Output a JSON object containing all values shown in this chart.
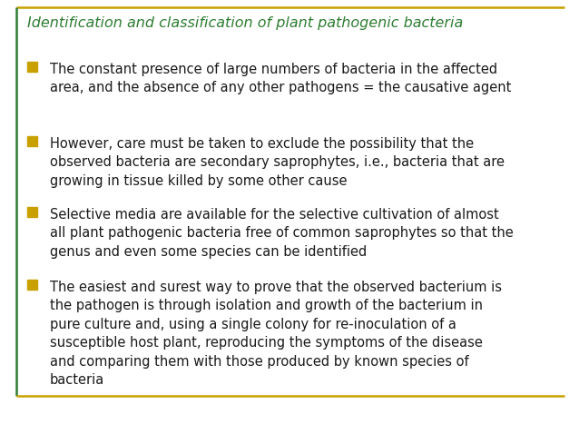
{
  "title": "Identification and classification of plant pathogenic bacteria",
  "title_color": "#2E7D32",
  "title_fontstyle": "italic",
  "title_fontsize": 11.5,
  "bullet_color": "#C8A000",
  "text_color": "#1a1a1a",
  "background_color": "#ffffff",
  "border_top_color": "#C8A000",
  "border_left_color": "#2E7D32",
  "border_bottom_color": "#C8A000",
  "text_fontsize": 10.5,
  "bullets": [
    "The constant presence of large numbers of bacteria in the affected\narea, and the absence of any other pathogens = the causative agent",
    "However, care must be taken to exclude the possibility that the\nobserved bacteria are secondary saprophytes, i.e., bacteria that are\ngrowing in tissue killed by some other cause",
    "Selective media are available for the selective cultivation of almost\nall plant pathogenic bacteria free of common saprophytes so that the\ngenus and even some species can be identified",
    "The easiest and surest way to prove that the observed bacterium is\nthe pathogen is through isolation and growth of the bacterium in\npure culture and, using a single colony for re-inoculation of a\nsusceptible host plant, reproducing the symptoms of the disease\nand comparing them with those produced by known species of\nbacteria"
  ],
  "fig_width": 6.38,
  "fig_height": 4.78,
  "dpi": 100
}
